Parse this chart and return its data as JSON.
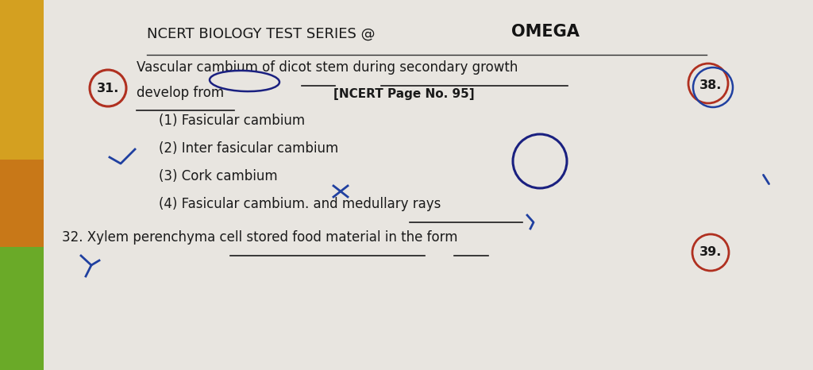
{
  "bg_color": "#c8bfaf",
  "page_color": "#e8e5df",
  "left_bar_colors": [
    "#e8a020",
    "#c8881a",
    "#d4a030",
    "#8ab840",
    "#5a9428"
  ],
  "title_normal": "NCERT BIOLOGY TEST SERIES @ ",
  "title_bold": "OMEGA",
  "q31_line1": "Vascular cambium of dicot stem during secondary growth",
  "q31_line2": "develop from",
  "q31_ncert": "[NCERT Page No. 95]",
  "opt1": "(1) Fasicular cambium",
  "opt2": "(2) Inter fasicular cambium",
  "opt3": "(3) Cork cambium",
  "opt4": "(4) Fasicular cambium. and medullary rays",
  "q32_text": "32. Xylem perenchyma cell stored food material in the form",
  "text_color": "#1a1a1a",
  "red_circle_color": "#b03020",
  "blue_ink_color": "#2040a0",
  "title_underline_color": "#303030"
}
